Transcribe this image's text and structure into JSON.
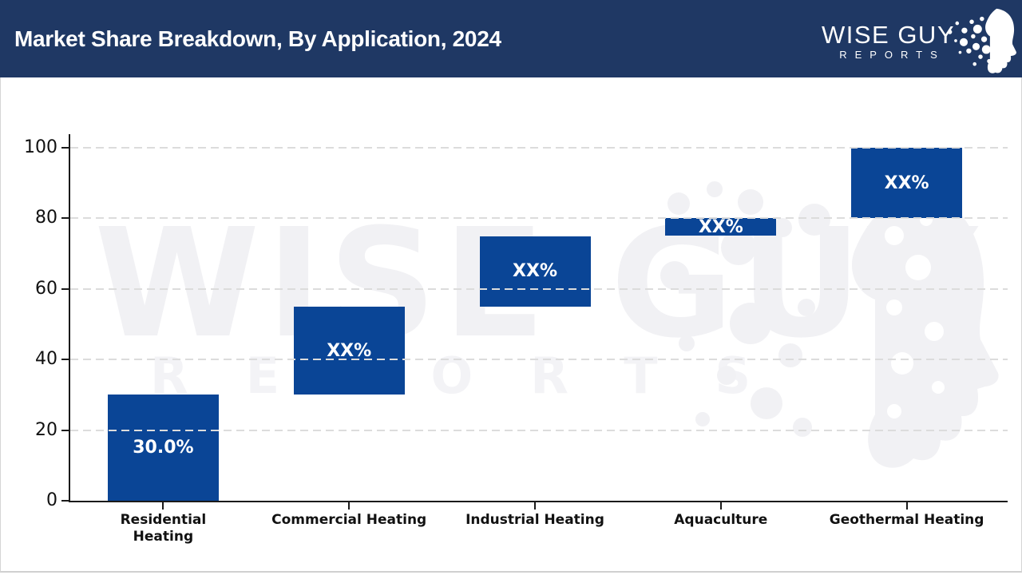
{
  "header": {
    "title": "Market Share Breakdown, By Application, 2024",
    "logo": {
      "line1": "WISE GUY",
      "line2": "REPORTS"
    }
  },
  "watermark": {
    "line1": "WISE GUY",
    "line2": "REPORTS"
  },
  "colors": {
    "header_bg": "#1f3864",
    "page_bg": "#ffffff",
    "watermark": "#f1f1f4",
    "frame_border": "#d5d5d5"
  },
  "chart_data": {
    "type": "bar",
    "subtype": "waterfall",
    "title": "Market Share Breakdown, By Application, 2024",
    "categories": [
      "Residential Heating",
      "Commercial Heating",
      "Industrial Heating",
      "Aquaculture",
      "Geothermal Heating"
    ],
    "tick_labels": [
      "Residential\nHeating",
      "Commercial Heating",
      "Industrial Heating",
      "Aquaculture",
      "Geothermal Heating"
    ],
    "segments": [
      {
        "category": "Residential Heating",
        "start": 0,
        "end": 30,
        "value_pct": 30,
        "label": "30.0%"
      },
      {
        "category": "Commercial Heating",
        "start": 30,
        "end": 55,
        "value_pct": 25,
        "label": "XX%"
      },
      {
        "category": "Industrial Heating",
        "start": 55,
        "end": 75,
        "value_pct": 20,
        "label": "XX%"
      },
      {
        "category": "Aquaculture",
        "start": 75,
        "end": 80,
        "value_pct": 5,
        "label": "XX%"
      },
      {
        "category": "Geothermal Heating",
        "start": 80,
        "end": 100,
        "value_pct": 20,
        "label": "XX%"
      }
    ],
    "yticks": [
      0,
      20,
      40,
      60,
      80,
      100
    ],
    "ylim": [
      0,
      105
    ],
    "grid": "horizontal-dashed-over-bars",
    "legend": "none",
    "xlabel": "",
    "ylabel": "",
    "colors": {
      "bar": "#0a4596",
      "bar_label": "#ffffff",
      "grid": "#dcdcdc",
      "axis": "#1a1a1a",
      "tick_label": "#111111"
    }
  }
}
